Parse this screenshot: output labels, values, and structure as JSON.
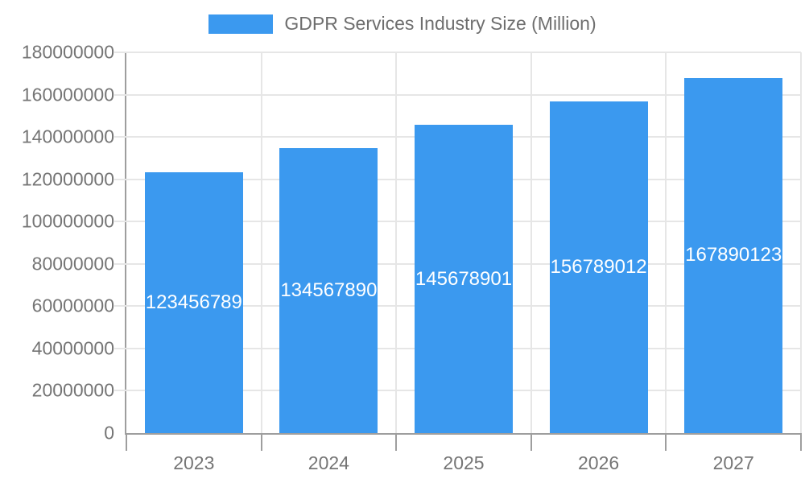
{
  "chart_data": {
    "type": "bar",
    "title": "GDPR Services Industry Size (Million)",
    "categories": [
      "2023",
      "2024",
      "2025",
      "2026",
      "2027"
    ],
    "values": [
      123456789,
      134567890,
      145678901,
      156789012,
      167890123
    ],
    "xlabel": "",
    "ylabel": "",
    "ylim": [
      0,
      180000000
    ],
    "ytick_step": 20000000,
    "ytick_labels": [
      "0",
      "20000000",
      "40000000",
      "60000000",
      "80000000",
      "100000000",
      "120000000",
      "140000000",
      "160000000",
      "180000000"
    ],
    "grid": "on",
    "legend_position": "top-center",
    "bar_labels_inside": true
  },
  "colors": {
    "bar": "#3b99ef",
    "axis_line": "#9e9e9e",
    "gridline": "#e6e6e6",
    "axis_text": "#757575",
    "legend_text": "#6e6e6e",
    "bar_label_text": "#ffffff",
    "background": "#ffffff"
  }
}
